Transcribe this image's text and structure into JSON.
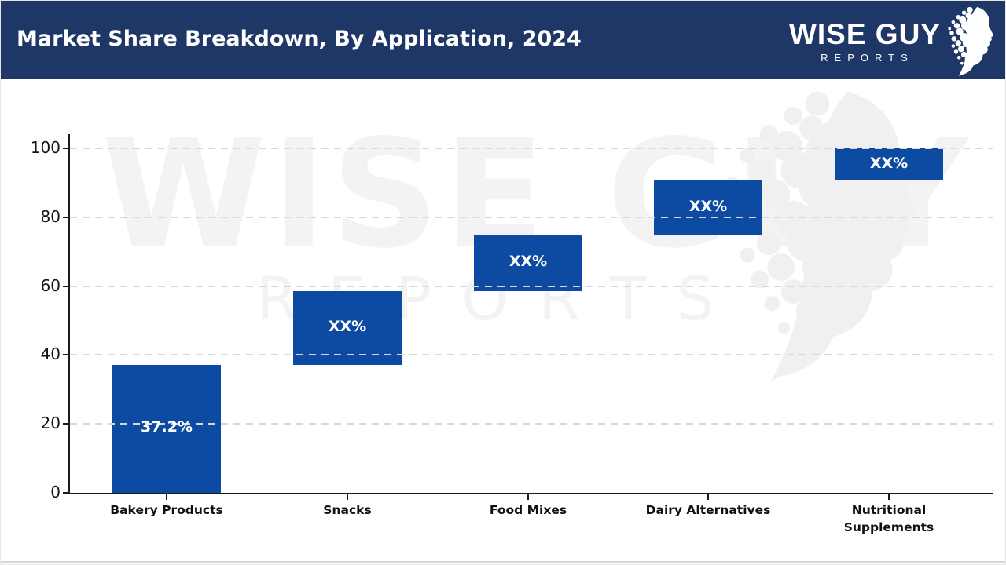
{
  "header": {
    "title": "Market Share Breakdown, By Application, 2024"
  },
  "logo": {
    "line1": "WISE GUY",
    "line2": "REPORTS",
    "icon": "dotted-face-profile-icon"
  },
  "watermark": {
    "line1": "WISE GUY",
    "line2": "R E P O R T S",
    "icon": "dotted-face-profile-icon"
  },
  "colors": {
    "header_bg": "#1e3766",
    "bar": "#0d4aa2",
    "grid": "#d8d8d8",
    "axis": "#1a1a1a",
    "bar_label_text": "#ffffff",
    "watermark_text": "#f3f3f3",
    "watermark_face": "#f0f0f0"
  },
  "chart_data": {
    "type": "bar",
    "subtype": "waterfall",
    "title": "Market Share Breakdown, By Application, 2024",
    "xlabel": "",
    "ylabel": "",
    "ylim": [
      0,
      100
    ],
    "yticks": [
      0,
      20,
      40,
      60,
      80,
      100
    ],
    "grid": "horizontal-dashed-above-bars",
    "legend": "none",
    "bar_color": "#0d4aa2",
    "categories": [
      "Bakery Products",
      "Snacks",
      "Food Mixes",
      "Dairy Alternatives",
      "Nutritional Supplements"
    ],
    "bars": [
      {
        "category": "Bakery Products",
        "start": 0,
        "end": 37.2,
        "label": "37.2%"
      },
      {
        "category": "Snacks",
        "start": 37.2,
        "end": 58.6,
        "label": "XX%"
      },
      {
        "category": "Food Mixes",
        "start": 58.6,
        "end": 74.7,
        "label": "XX%"
      },
      {
        "category": "Dairy Alternatives",
        "start": 74.7,
        "end": 90.6,
        "label": "XX%"
      },
      {
        "category": "Nutritional Supplements",
        "start": 90.6,
        "end": 100,
        "label": "XX%"
      }
    ]
  }
}
